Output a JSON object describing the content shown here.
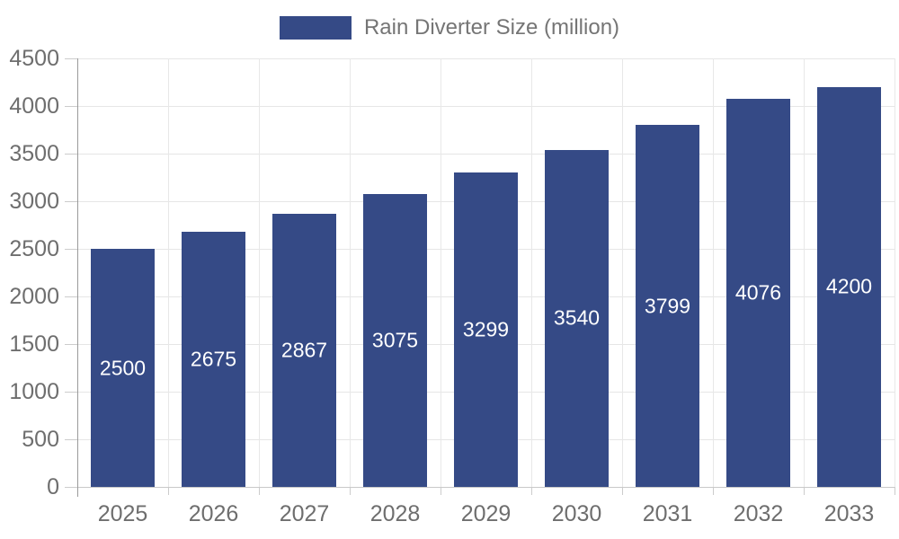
{
  "legend": {
    "label": "Rain Diverter Size (million)"
  },
  "chart_data": {
    "type": "bar",
    "title": "",
    "categories": [
      "2025",
      "2026",
      "2027",
      "2028",
      "2029",
      "2030",
      "2031",
      "2032",
      "2033"
    ],
    "series": [
      {
        "name": "Rain Diverter Size (million)",
        "values": [
          2500,
          2675,
          2867,
          3075,
          3299,
          3540,
          3799,
          4076,
          4200
        ]
      }
    ],
    "xlabel": "",
    "ylabel": "",
    "ylim": [
      0,
      4500
    ],
    "ytick_step": 500,
    "ytick_labels": [
      "0",
      "500",
      "1000",
      "1500",
      "2000",
      "2500",
      "3000",
      "3500",
      "4000",
      "4500"
    ],
    "grid": true,
    "legend_position": "top",
    "bar_color": "#354a86",
    "value_label_color": "#ffffff",
    "axis_text_color": "#6e6e6e",
    "legend_text_color": "#757575"
  }
}
